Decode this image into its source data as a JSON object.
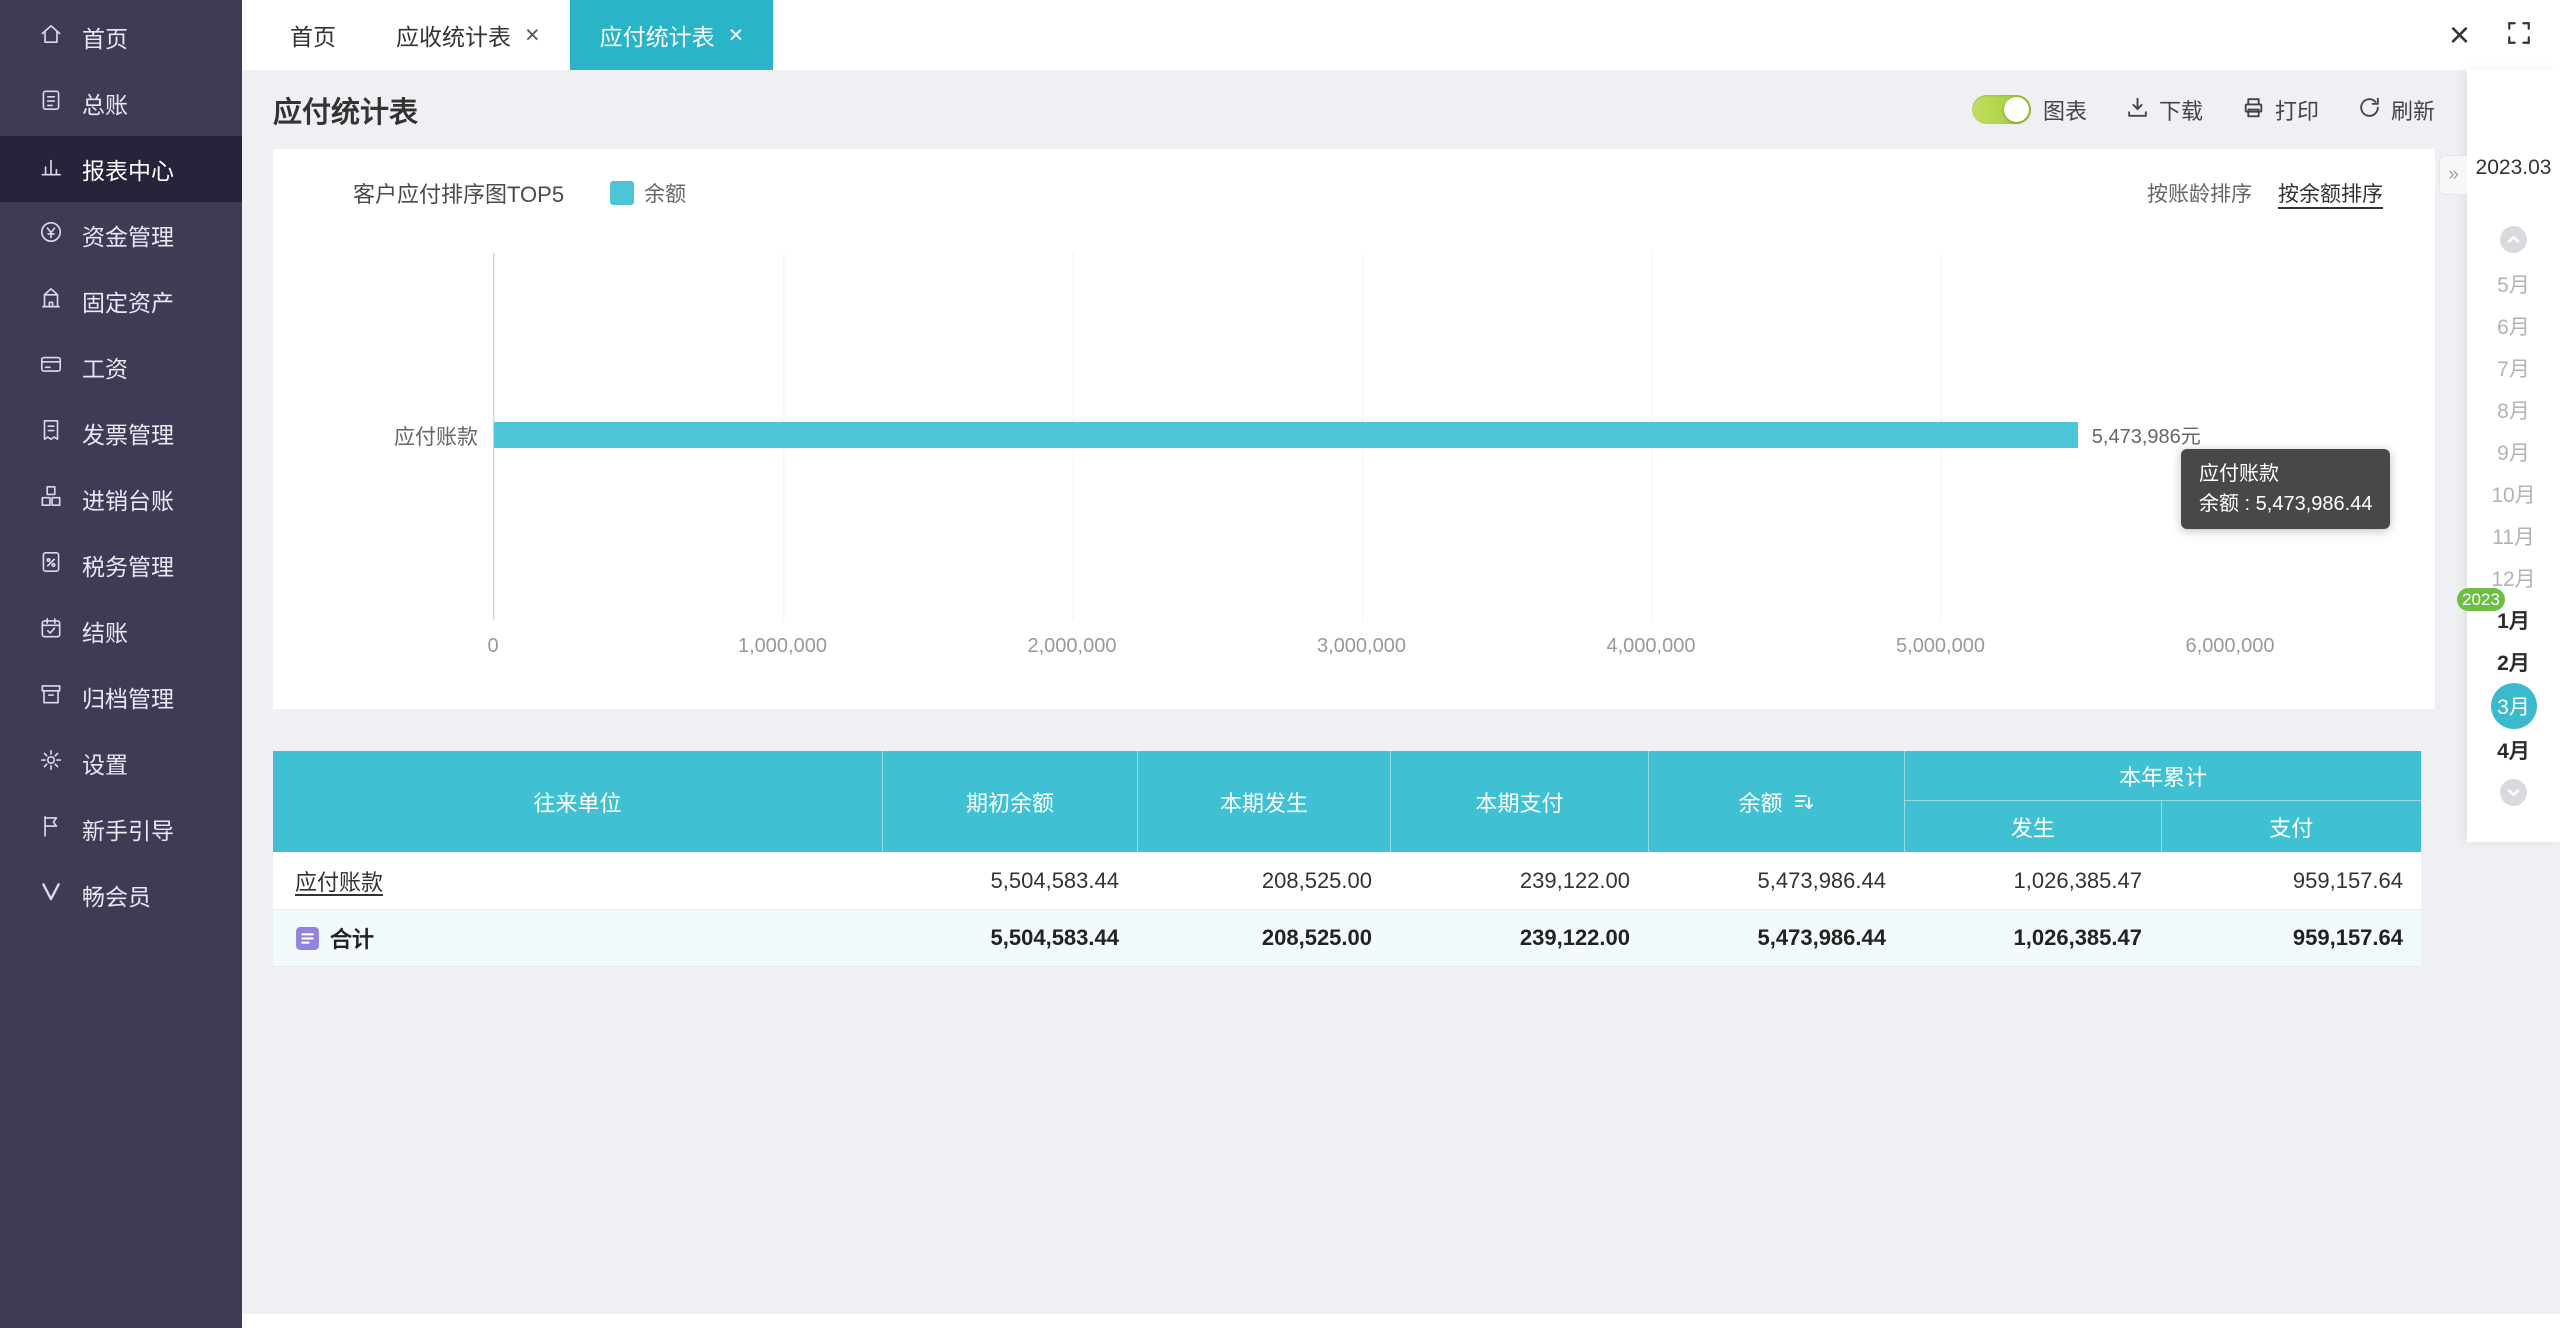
{
  "sidebar": {
    "items": [
      {
        "label": "首页",
        "icon": "home-icon"
      },
      {
        "label": "总账",
        "icon": "ledger-icon"
      },
      {
        "label": "报表中心",
        "icon": "report-center-icon",
        "active": true
      },
      {
        "label": "资金管理",
        "icon": "funds-icon"
      },
      {
        "label": "固定资产",
        "icon": "fixed-assets-icon"
      },
      {
        "label": "工资",
        "icon": "salary-icon"
      },
      {
        "label": "发票管理",
        "icon": "invoice-icon"
      },
      {
        "label": "进销台账",
        "icon": "inventory-icon"
      },
      {
        "label": "税务管理",
        "icon": "tax-icon"
      },
      {
        "label": "结账",
        "icon": "closing-icon"
      },
      {
        "label": "归档管理",
        "icon": "archive-icon"
      },
      {
        "label": "设置",
        "icon": "settings-icon"
      },
      {
        "label": "新手引导",
        "icon": "guide-icon"
      },
      {
        "label": "畅会员",
        "icon": "member-icon"
      }
    ]
  },
  "tabs": {
    "items": [
      {
        "label": "首页",
        "closable": false,
        "active": false
      },
      {
        "label": "应收统计表",
        "closable": true,
        "active": false
      },
      {
        "label": "应付统计表",
        "closable": true,
        "active": true
      }
    ]
  },
  "icons": {
    "close": "×",
    "tab_close": "×",
    "collapse": "»"
  },
  "page": {
    "title": "应付统计表"
  },
  "toolbar": {
    "chart_toggle": "图表",
    "download": "下载",
    "print": "打印",
    "refresh": "刷新"
  },
  "chart_card": {
    "title": "客户应付排序图TOP5",
    "legend": "余额",
    "sort_age": "按账龄排序",
    "sort_balance": "按余额排序",
    "tooltip_title": "应付账款",
    "tooltip_value": "余额 : 5,473,986.44"
  },
  "chart_data": {
    "type": "bar",
    "orientation": "horizontal",
    "title": "客户应付排序图TOP5",
    "categories": [
      "应付账款"
    ],
    "series": [
      {
        "name": "余额",
        "values": [
          5473986.44
        ]
      }
    ],
    "data_label": "5,473,986元",
    "xlim": [
      0,
      6000000
    ],
    "x_ticks": [
      "0",
      "1,000,000",
      "2,000,000",
      "3,000,000",
      "4,000,000",
      "5,000,000",
      "6,000,000"
    ],
    "grid": true,
    "legend_position": "top",
    "bar_color": "#4cc5d6"
  },
  "table": {
    "headers": {
      "unit": "往来单位",
      "opening": "期初余额",
      "current": "本期发生",
      "paid": "本期支付",
      "balance": "余额",
      "ytd": "本年累计",
      "ytd_occur": "发生",
      "ytd_paid": "支付"
    },
    "rows": [
      {
        "unit": "应付账款",
        "opening": "5,504,583.44",
        "current": "208,525.00",
        "paid": "239,122.00",
        "balance": "5,473,986.44",
        "ytd_occur": "1,026,385.47",
        "ytd_paid": "959,157.64"
      }
    ],
    "total": {
      "label": "合计",
      "opening": "5,504,583.44",
      "current": "208,525.00",
      "paid": "239,122.00",
      "balance": "5,473,986.44",
      "ytd_occur": "1,026,385.47",
      "ytd_paid": "959,157.64"
    }
  },
  "month_panel": {
    "current": "2023.03",
    "year_badge": "2023",
    "months": [
      {
        "label": "5月",
        "state": "muted"
      },
      {
        "label": "6月",
        "state": "muted"
      },
      {
        "label": "7月",
        "state": "muted"
      },
      {
        "label": "8月",
        "state": "muted"
      },
      {
        "label": "9月",
        "state": "muted"
      },
      {
        "label": "10月",
        "state": "muted"
      },
      {
        "label": "11月",
        "state": "muted"
      },
      {
        "label": "12月",
        "state": "muted"
      },
      {
        "label": "1月",
        "state": "normal"
      },
      {
        "label": "2月",
        "state": "normal"
      },
      {
        "label": "3月",
        "state": "active"
      },
      {
        "label": "4月",
        "state": "normal"
      }
    ]
  },
  "colors": {
    "sidebar_bg": "#3e3b54",
    "active_tab": "#2ab4c8",
    "table_header": "#40c1d3",
    "bar": "#4cc5d6",
    "toggle_green": "#9ccd2e",
    "month_active": "#3cbacd",
    "year_badge": "#6cbf45"
  }
}
